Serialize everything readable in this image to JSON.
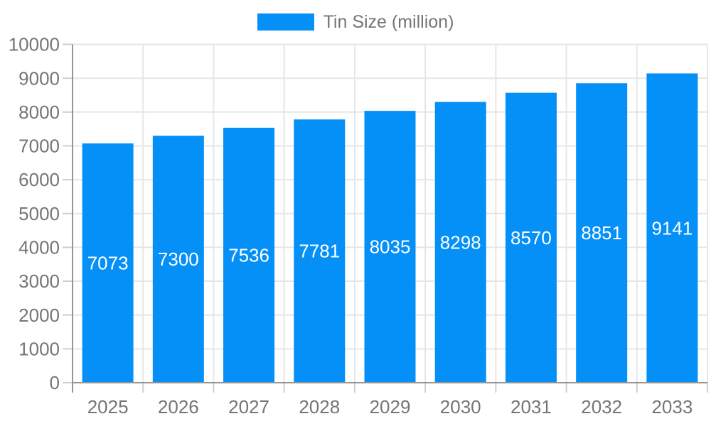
{
  "chart_data": {
    "type": "bar",
    "title": "",
    "legend": "Tin Size (million)",
    "legend_position": "top",
    "xlabel": "",
    "ylabel": "",
    "categories": [
      "2025",
      "2026",
      "2027",
      "2028",
      "2029",
      "2030",
      "2031",
      "2032",
      "2033"
    ],
    "series": [
      {
        "name": "Tin Size (million)",
        "values": [
          7073,
          7300,
          7536,
          7781,
          8035,
          8298,
          8570,
          8851,
          9141
        ]
      }
    ],
    "bar_labels": [
      "7073",
      "7300",
      "7536",
      "7781",
      "8035",
      "8298",
      "8570",
      "8851",
      "9141"
    ],
    "ylim": [
      0,
      10000
    ],
    "ytick_step": 1000,
    "ytick_labels": [
      "0",
      "1000",
      "2000",
      "3000",
      "4000",
      "5000",
      "6000",
      "7000",
      "8000",
      "9000",
      "10000"
    ],
    "grid": true,
    "colors": {
      "bar": "#0590f8",
      "bar_label_text": "#ffffff",
      "gridline": "#e6e6e6",
      "tick_line": "#cfcfcf",
      "axis_line": "#949494",
      "tick_text": "#757575",
      "legend_text": "#757575",
      "background": "#ffffff"
    }
  }
}
